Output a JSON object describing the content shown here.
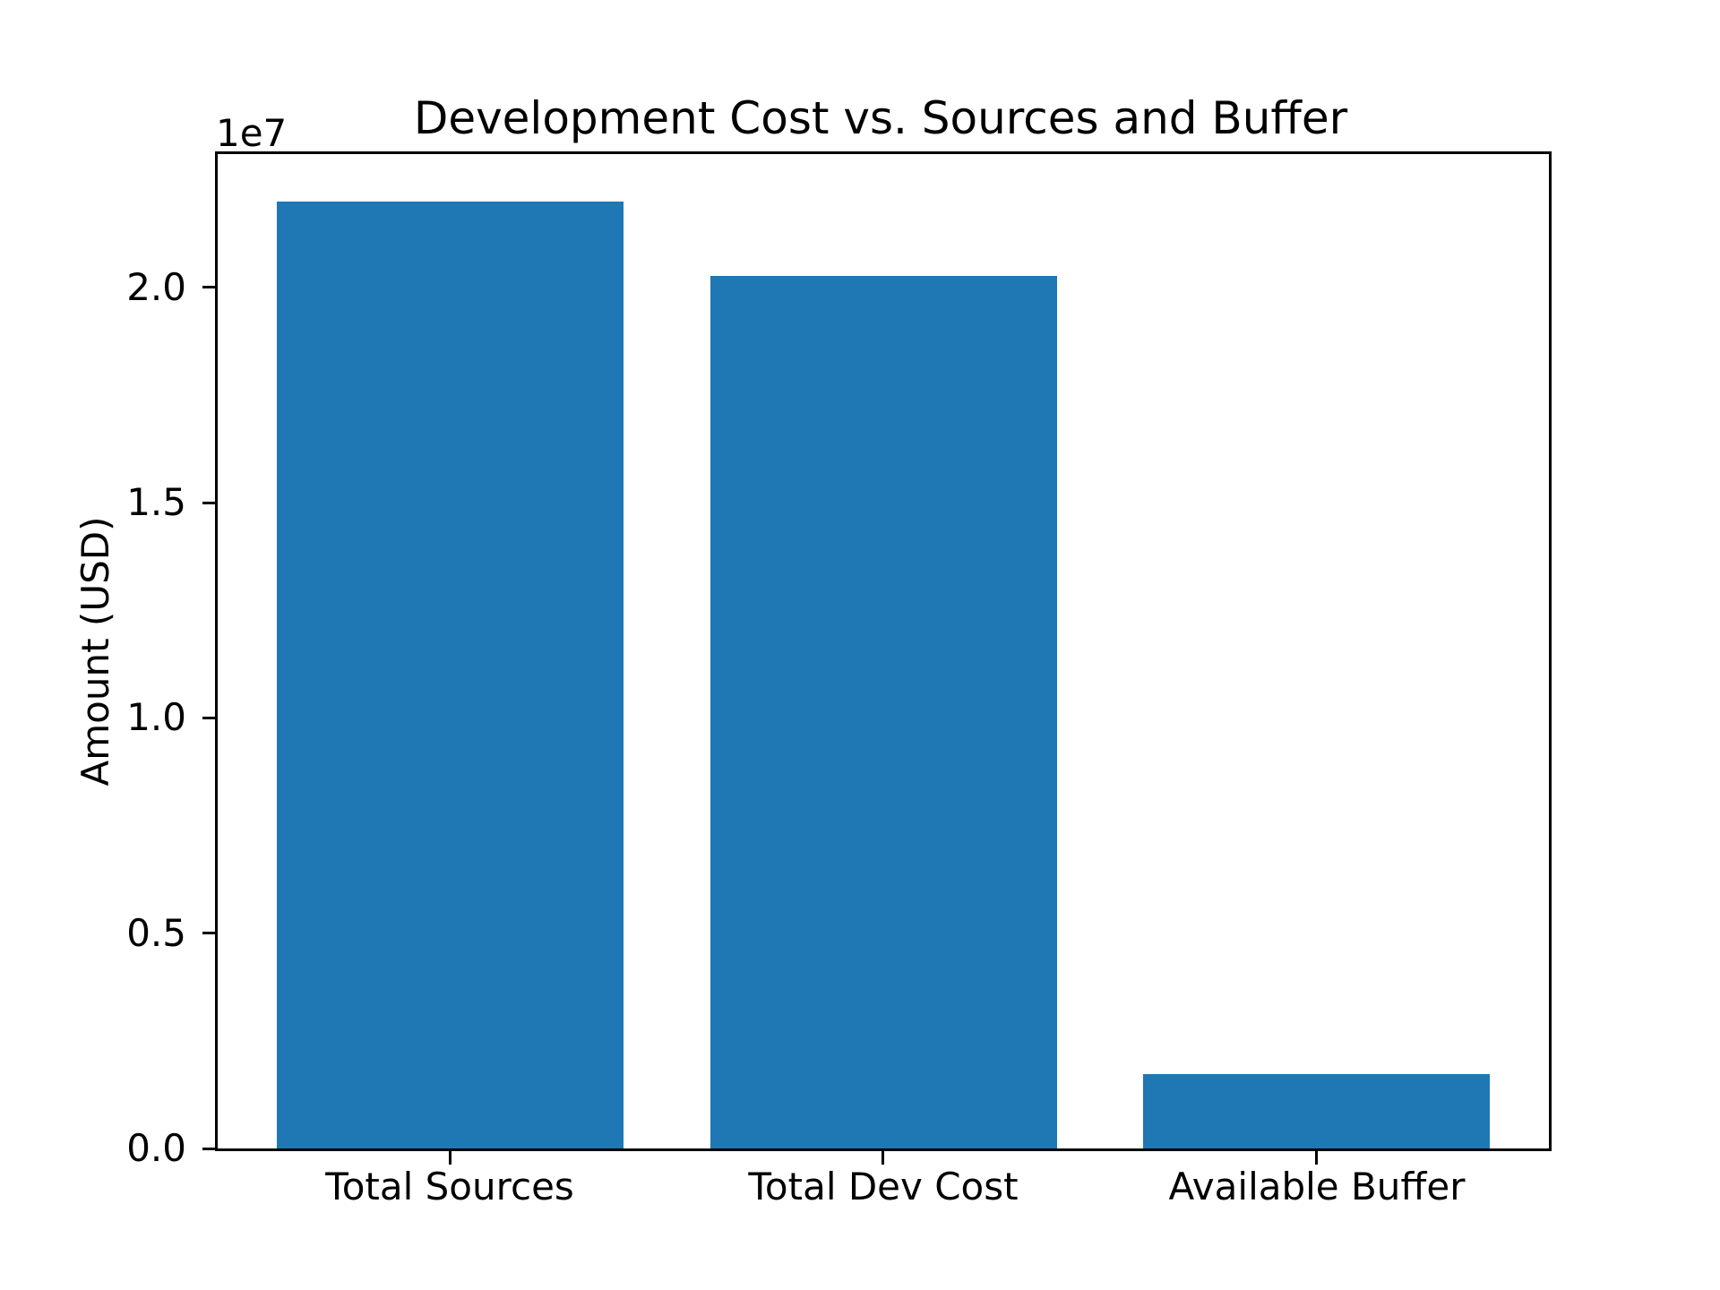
{
  "chart_data": {
    "type": "bar",
    "title": "Development Cost vs. Sources and Buffer",
    "ylabel": "Amount (USD)",
    "xlabel": "",
    "categories": [
      "Total Sources",
      "Total Dev Cost",
      "Available Buffer"
    ],
    "values": [
      22000000,
      20275000,
      1725000
    ],
    "bar_color": "#1f77b4",
    "bar_width_frac": 0.8,
    "xlim": [
      -0.5367,
      2.5367
    ],
    "ylim": [
      0,
      23100000
    ],
    "yticks": [
      0,
      5000000,
      10000000,
      15000000,
      20000000
    ],
    "ytick_labels": [
      "0.0",
      "0.5",
      "1.0",
      "1.5",
      "2.0"
    ],
    "offset_text": "1e7",
    "grid": false,
    "legend": false
  }
}
